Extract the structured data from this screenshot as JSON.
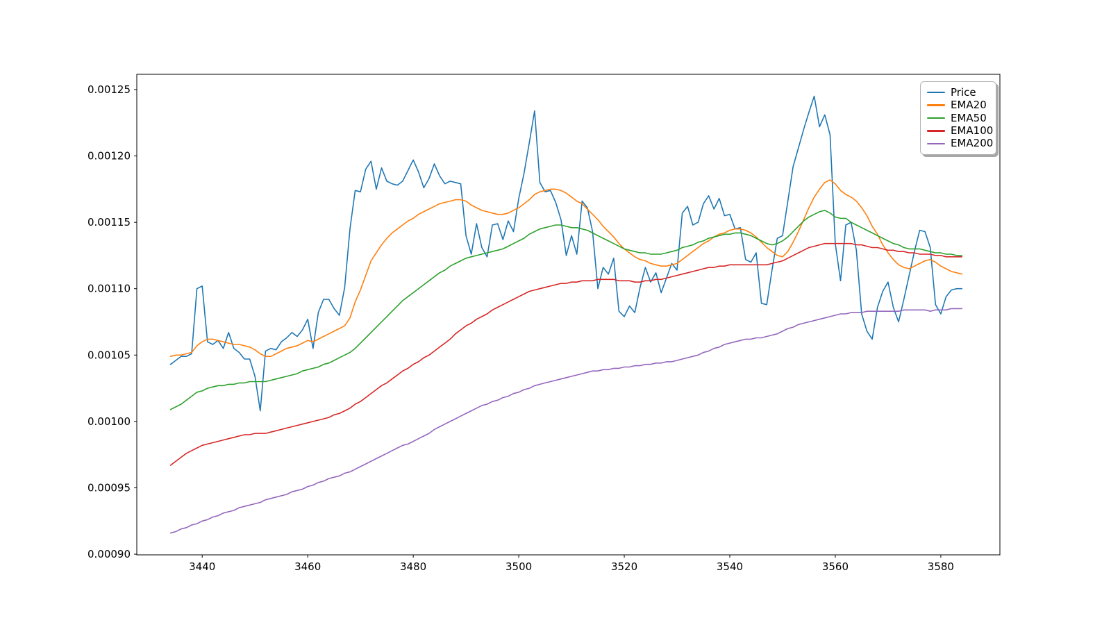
{
  "figure": {
    "background": "#ffffff"
  },
  "chart_data": {
    "type": "line",
    "title": "",
    "xlabel": "",
    "ylabel": "",
    "grid": false,
    "xlim": [
      3427.6,
      3591.2
    ],
    "ylim": [
      0.0008995,
      0.0012615
    ],
    "xticks": [
      3440,
      3460,
      3480,
      3500,
      3520,
      3540,
      3560,
      3580
    ],
    "xtick_labels": [
      "3440",
      "3460",
      "3480",
      "3500",
      "3520",
      "3540",
      "3560",
      "3580"
    ],
    "yticks": [
      0.0009,
      0.00095,
      0.001,
      0.00105,
      0.0011,
      0.00115,
      0.0012,
      0.00125
    ],
    "ytick_labels": [
      "0.00090",
      "0.00095",
      "0.00100",
      "0.00105",
      "0.00110",
      "0.00115",
      "0.00120",
      "0.00125"
    ],
    "legend": {
      "position": "upper right",
      "entries": [
        "Price",
        "EMA20",
        "EMA50",
        "EMA100",
        "EMA200"
      ]
    },
    "x": [
      3434,
      3435,
      3436,
      3437,
      3438,
      3439,
      3440,
      3441,
      3442,
      3443,
      3444,
      3445,
      3446,
      3447,
      3448,
      3449,
      3450,
      3451,
      3452,
      3453,
      3454,
      3455,
      3456,
      3457,
      3458,
      3459,
      3460,
      3461,
      3462,
      3463,
      3464,
      3465,
      3466,
      3467,
      3468,
      3469,
      3470,
      3471,
      3472,
      3473,
      3474,
      3475,
      3476,
      3477,
      3478,
      3479,
      3480,
      3481,
      3482,
      3483,
      3484,
      3485,
      3486,
      3487,
      3488,
      3489,
      3490,
      3491,
      3492,
      3493,
      3494,
      3495,
      3496,
      3497,
      3498,
      3499,
      3500,
      3501,
      3502,
      3503,
      3504,
      3505,
      3506,
      3507,
      3508,
      3509,
      3510,
      3511,
      3512,
      3513,
      3514,
      3515,
      3516,
      3517,
      3518,
      3519,
      3520,
      3521,
      3522,
      3523,
      3524,
      3525,
      3526,
      3527,
      3528,
      3529,
      3530,
      3531,
      3532,
      3533,
      3534,
      3535,
      3536,
      3537,
      3538,
      3539,
      3540,
      3541,
      3542,
      3543,
      3544,
      3545,
      3546,
      3547,
      3548,
      3549,
      3550,
      3551,
      3552,
      3553,
      3554,
      3555,
      3556,
      3557,
      3558,
      3559,
      3560,
      3561,
      3562,
      3563,
      3564,
      3565,
      3566,
      3567,
      3568,
      3569,
      3570,
      3571,
      3572,
      3573,
      3574,
      3575,
      3576,
      3577,
      3578,
      3579,
      3580,
      3581,
      3582,
      3583,
      3584
    ],
    "series": [
      {
        "name": "Price",
        "color": "#1f77b4",
        "values": [
          0.001043,
          0.001046,
          0.001049,
          0.001049,
          0.001051,
          0.0011,
          0.001102,
          0.00106,
          0.001058,
          0.001061,
          0.001055,
          0.001067,
          0.001055,
          0.001052,
          0.001047,
          0.001047,
          0.001034,
          0.001008,
          0.001053,
          0.001055,
          0.001054,
          0.00106,
          0.001063,
          0.001067,
          0.001064,
          0.001069,
          0.001077,
          0.001055,
          0.001082,
          0.001092,
          0.001092,
          0.001085,
          0.00108,
          0.001101,
          0.001145,
          0.001174,
          0.001173,
          0.00119,
          0.001196,
          0.001175,
          0.001191,
          0.001181,
          0.001179,
          0.001178,
          0.001181,
          0.001189,
          0.001197,
          0.001188,
          0.001176,
          0.001183,
          0.001194,
          0.001185,
          0.001179,
          0.001181,
          0.00118,
          0.001179,
          0.00114,
          0.001126,
          0.001149,
          0.001131,
          0.001124,
          0.001148,
          0.001149,
          0.001137,
          0.001151,
          0.001143,
          0.001168,
          0.001187,
          0.00121,
          0.001234,
          0.00118,
          0.001173,
          0.001174,
          0.001165,
          0.001152,
          0.001125,
          0.00114,
          0.001126,
          0.001166,
          0.001161,
          0.001143,
          0.0011,
          0.001116,
          0.001111,
          0.001123,
          0.001083,
          0.001079,
          0.001087,
          0.001082,
          0.001101,
          0.001116,
          0.001105,
          0.001112,
          0.001097,
          0.001108,
          0.001119,
          0.001114,
          0.001157,
          0.001162,
          0.001148,
          0.00115,
          0.001164,
          0.00117,
          0.00116,
          0.001168,
          0.001155,
          0.001156,
          0.001145,
          0.001146,
          0.001122,
          0.00112,
          0.001127,
          0.001089,
          0.001088,
          0.001114,
          0.001138,
          0.00114,
          0.001166,
          0.001192,
          0.001206,
          0.00122,
          0.001233,
          0.001245,
          0.001222,
          0.001231,
          0.001216,
          0.001134,
          0.001106,
          0.001148,
          0.00115,
          0.001129,
          0.001081,
          0.001068,
          0.001062,
          0.001086,
          0.001098,
          0.001105,
          0.001086,
          0.001075,
          0.001092,
          0.00111,
          0.001128,
          0.001144,
          0.001143,
          0.001131,
          0.001088,
          0.001081,
          0.001094,
          0.001099,
          0.0011,
          0.0011
        ]
      },
      {
        "name": "EMA20",
        "color": "#ff7f0e",
        "values": [
          0.001049,
          0.00105,
          0.00105,
          0.001051,
          0.001052,
          0.001057,
          0.00106,
          0.001062,
          0.001062,
          0.001061,
          0.00106,
          0.001059,
          0.001058,
          0.001058,
          0.001057,
          0.001056,
          0.001054,
          0.001051,
          0.001049,
          0.001049,
          0.001051,
          0.001053,
          0.001055,
          0.001056,
          0.001057,
          0.001059,
          0.001061,
          0.00106,
          0.001062,
          0.001064,
          0.001066,
          0.001068,
          0.00107,
          0.001072,
          0.001078,
          0.00109,
          0.001099,
          0.00111,
          0.001121,
          0.001127,
          0.001133,
          0.001138,
          0.001142,
          0.001145,
          0.001148,
          0.001151,
          0.001153,
          0.001156,
          0.001158,
          0.00116,
          0.001162,
          0.001164,
          0.001165,
          0.001166,
          0.001167,
          0.001167,
          0.001166,
          0.001163,
          0.001161,
          0.001159,
          0.001158,
          0.001157,
          0.001156,
          0.001156,
          0.001157,
          0.001159,
          0.001161,
          0.001164,
          0.001167,
          0.001171,
          0.001173,
          0.001174,
          0.001175,
          0.001175,
          0.001174,
          0.001172,
          0.001169,
          0.001166,
          0.001164,
          0.00116,
          0.001156,
          0.001152,
          0.001147,
          0.001143,
          0.001139,
          0.001134,
          0.00113,
          0.001127,
          0.001124,
          0.001122,
          0.001121,
          0.001119,
          0.001118,
          0.001117,
          0.001117,
          0.001118,
          0.001119,
          0.001122,
          0.001125,
          0.001128,
          0.001131,
          0.001134,
          0.001136,
          0.001139,
          0.001141,
          0.001142,
          0.001144,
          0.001145,
          0.001145,
          0.001144,
          0.001142,
          0.001139,
          0.001135,
          0.001131,
          0.001128,
          0.001125,
          0.001124,
          0.001128,
          0.001135,
          0.001143,
          0.001152,
          0.001161,
          0.001169,
          0.001175,
          0.00118,
          0.001182,
          0.001179,
          0.001174,
          0.001171,
          0.001169,
          0.001166,
          0.001161,
          0.001155,
          0.001147,
          0.001141,
          0.001133,
          0.001127,
          0.001122,
          0.001118,
          0.001116,
          0.001115,
          0.001117,
          0.001119,
          0.001121,
          0.001122,
          0.00112,
          0.001117,
          0.001115,
          0.001113,
          0.001112,
          0.001111
        ]
      },
      {
        "name": "EMA50",
        "color": "#2ca02c",
        "values": [
          0.001009,
          0.001011,
          0.001013,
          0.001016,
          0.001019,
          0.001022,
          0.001023,
          0.001025,
          0.001026,
          0.001027,
          0.001027,
          0.001028,
          0.001028,
          0.001029,
          0.001029,
          0.00103,
          0.00103,
          0.00103,
          0.00103,
          0.001031,
          0.001032,
          0.001033,
          0.001034,
          0.001035,
          0.001036,
          0.001038,
          0.001039,
          0.00104,
          0.001041,
          0.001043,
          0.001044,
          0.001046,
          0.001048,
          0.00105,
          0.001052,
          0.001055,
          0.001059,
          0.001063,
          0.001067,
          0.001071,
          0.001075,
          0.001079,
          0.001083,
          0.001087,
          0.001091,
          0.001094,
          0.001097,
          0.0011,
          0.001103,
          0.001106,
          0.001109,
          0.001112,
          0.001114,
          0.001117,
          0.001119,
          0.001121,
          0.001123,
          0.001124,
          0.001125,
          0.001126,
          0.001127,
          0.001128,
          0.001129,
          0.00113,
          0.001132,
          0.001134,
          0.001136,
          0.001138,
          0.001141,
          0.001143,
          0.001145,
          0.001146,
          0.001147,
          0.001148,
          0.001148,
          0.001147,
          0.001146,
          0.001146,
          0.001145,
          0.001144,
          0.001142,
          0.00114,
          0.001138,
          0.001136,
          0.001134,
          0.001132,
          0.00113,
          0.001129,
          0.001128,
          0.001127,
          0.001127,
          0.001126,
          0.001126,
          0.001126,
          0.001127,
          0.001128,
          0.001129,
          0.001131,
          0.001132,
          0.001133,
          0.001135,
          0.001136,
          0.001138,
          0.001139,
          0.00114,
          0.001141,
          0.001141,
          0.001142,
          0.001142,
          0.001141,
          0.00114,
          0.001138,
          0.001136,
          0.001134,
          0.001133,
          0.001134,
          0.001136,
          0.001139,
          0.001143,
          0.001147,
          0.001151,
          0.001154,
          0.001156,
          0.001158,
          0.001159,
          0.001157,
          0.001154,
          0.001153,
          0.001153,
          0.00115,
          0.001148,
          0.001146,
          0.001144,
          0.001142,
          0.00114,
          0.001138,
          0.001136,
          0.001134,
          0.001133,
          0.001131,
          0.00113,
          0.00113,
          0.00113,
          0.001129,
          0.001128,
          0.001127,
          0.001127,
          0.001126,
          0.001126,
          0.001125,
          0.001125
        ]
      },
      {
        "name": "EMA100",
        "color": "#d62728",
        "values": [
          0.000967,
          0.00097,
          0.000973,
          0.000976,
          0.000978,
          0.00098,
          0.000982,
          0.000983,
          0.000984,
          0.000985,
          0.000986,
          0.000987,
          0.000988,
          0.000989,
          0.00099,
          0.00099,
          0.000991,
          0.000991,
          0.000991,
          0.000992,
          0.000993,
          0.000994,
          0.000995,
          0.000996,
          0.000997,
          0.000998,
          0.000999,
          0.001,
          0.001001,
          0.001002,
          0.001003,
          0.001005,
          0.001006,
          0.001008,
          0.00101,
          0.001013,
          0.001015,
          0.001018,
          0.001021,
          0.001024,
          0.001027,
          0.001029,
          0.001032,
          0.001035,
          0.001038,
          0.00104,
          0.001043,
          0.001045,
          0.001048,
          0.00105,
          0.001053,
          0.001056,
          0.001059,
          0.001062,
          0.001066,
          0.001069,
          0.001072,
          0.001074,
          0.001077,
          0.001079,
          0.001081,
          0.001084,
          0.001086,
          0.001088,
          0.00109,
          0.001092,
          0.001094,
          0.001096,
          0.001098,
          0.001099,
          0.0011,
          0.001101,
          0.001102,
          0.001103,
          0.001104,
          0.001104,
          0.001105,
          0.001105,
          0.001106,
          0.001106,
          0.001106,
          0.001107,
          0.001107,
          0.001107,
          0.001107,
          0.001106,
          0.001106,
          0.001106,
          0.001105,
          0.001105,
          0.001106,
          0.001106,
          0.001107,
          0.001107,
          0.001108,
          0.001109,
          0.00111,
          0.001111,
          0.001112,
          0.001113,
          0.001114,
          0.001115,
          0.001116,
          0.001116,
          0.001117,
          0.001117,
          0.001118,
          0.001118,
          0.001118,
          0.001118,
          0.001118,
          0.001118,
          0.001118,
          0.001118,
          0.001119,
          0.00112,
          0.001121,
          0.001123,
          0.001125,
          0.001127,
          0.001129,
          0.001131,
          0.001132,
          0.001133,
          0.001134,
          0.001134,
          0.001134,
          0.001134,
          0.001134,
          0.001134,
          0.001133,
          0.001133,
          0.001132,
          0.001131,
          0.001131,
          0.00113,
          0.001129,
          0.001129,
          0.001128,
          0.001128,
          0.001127,
          0.001127,
          0.001126,
          0.001126,
          0.001126,
          0.001125,
          0.001125,
          0.001124,
          0.001124,
          0.001124,
          0.001124
        ]
      },
      {
        "name": "EMA200",
        "color": "#9467bd",
        "values": [
          0.000916,
          0.000917,
          0.000919,
          0.00092,
          0.000922,
          0.000923,
          0.000925,
          0.000926,
          0.000928,
          0.000929,
          0.000931,
          0.000932,
          0.000933,
          0.000935,
          0.000936,
          0.000937,
          0.000938,
          0.000939,
          0.000941,
          0.000942,
          0.000943,
          0.000944,
          0.000945,
          0.000947,
          0.000948,
          0.000949,
          0.000951,
          0.000952,
          0.000954,
          0.000955,
          0.000957,
          0.000958,
          0.000959,
          0.000961,
          0.000962,
          0.000964,
          0.000966,
          0.000968,
          0.00097,
          0.000972,
          0.000974,
          0.000976,
          0.000978,
          0.00098,
          0.000982,
          0.000983,
          0.000985,
          0.000987,
          0.000989,
          0.000991,
          0.000994,
          0.000996,
          0.000998,
          0.001,
          0.001002,
          0.001004,
          0.001006,
          0.001008,
          0.00101,
          0.001012,
          0.001013,
          0.001015,
          0.001016,
          0.001018,
          0.001019,
          0.001021,
          0.001022,
          0.001024,
          0.001025,
          0.001027,
          0.001028,
          0.001029,
          0.00103,
          0.001031,
          0.001032,
          0.001033,
          0.001034,
          0.001035,
          0.001036,
          0.001037,
          0.001038,
          0.001038,
          0.001039,
          0.001039,
          0.00104,
          0.00104,
          0.001041,
          0.001041,
          0.001042,
          0.001042,
          0.001043,
          0.001043,
          0.001044,
          0.001044,
          0.001045,
          0.001045,
          0.001046,
          0.001047,
          0.001048,
          0.001049,
          0.00105,
          0.001052,
          0.001053,
          0.001055,
          0.001056,
          0.001058,
          0.001059,
          0.00106,
          0.001061,
          0.001062,
          0.001062,
          0.001063,
          0.001063,
          0.001064,
          0.001065,
          0.001066,
          0.001068,
          0.00107,
          0.001071,
          0.001073,
          0.001074,
          0.001075,
          0.001076,
          0.001077,
          0.001078,
          0.001079,
          0.00108,
          0.001081,
          0.001081,
          0.001082,
          0.001082,
          0.001082,
          0.001083,
          0.001083,
          0.001083,
          0.001083,
          0.001083,
          0.001083,
          0.001083,
          0.001084,
          0.001084,
          0.001084,
          0.001084,
          0.001084,
          0.001083,
          0.001084,
          0.001084,
          0.001084,
          0.001085,
          0.001085,
          0.001085
        ]
      }
    ]
  }
}
